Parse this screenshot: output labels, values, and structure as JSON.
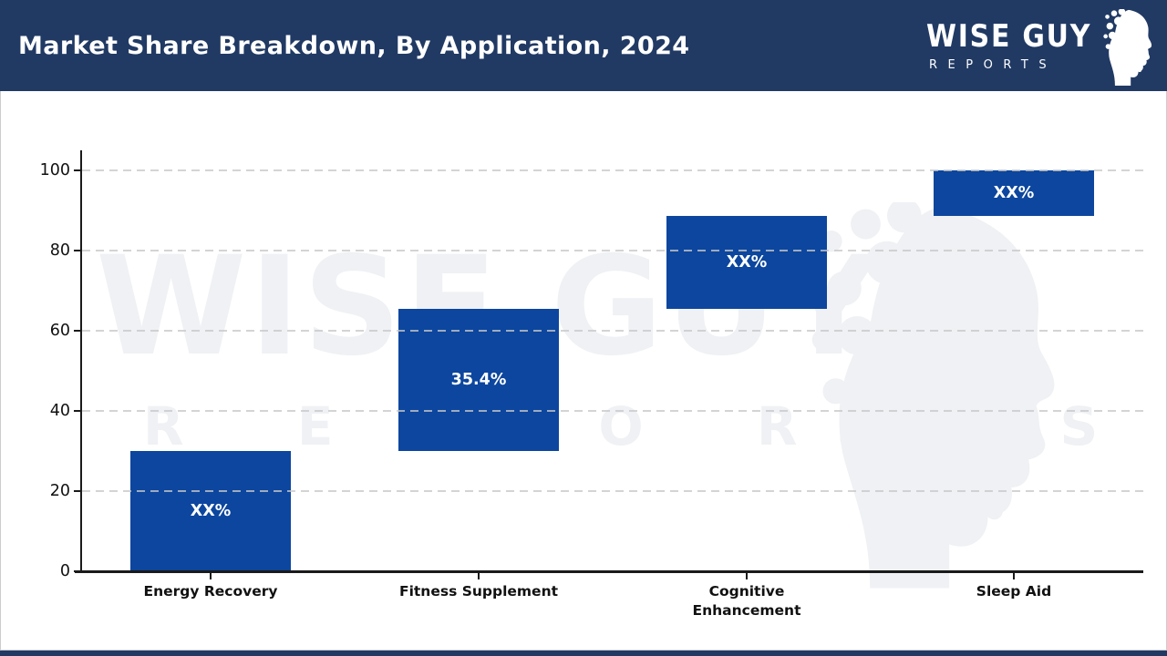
{
  "header": {
    "title": "Market Share Breakdown, By Application, 2024",
    "logo": {
      "line1": "WISE GUY",
      "line2": "REPORTS"
    }
  },
  "watermark": {
    "line1": "WISE GUY",
    "line2": "R E P O R T S"
  },
  "colors": {
    "header_navy": "#213a64",
    "bar_blue": "#0c469e",
    "grid_gray": "#c8c8c8",
    "axis_dark": "#1a1a1a",
    "watermark_gray": "#eff1f4",
    "bar_label_white": "#ffffff"
  },
  "chart_data": {
    "type": "bar",
    "subtype": "floating-waterfall",
    "title": "Market Share Breakdown, By Application, 2024",
    "categories": [
      "Energy Recovery",
      "Fitness Supplement",
      "Cognitive\nEnhancement",
      "Sleep Aid"
    ],
    "segments": [
      {
        "category": "Energy Recovery",
        "start": 0,
        "end": 30,
        "value_label": "XX%"
      },
      {
        "category": "Fitness Supplement",
        "start": 30,
        "end": 65.4,
        "value_label": "35.4%"
      },
      {
        "category": "Cognitive\nEnhancement",
        "start": 65.4,
        "end": 88.7,
        "value_label": "XX%"
      },
      {
        "category": "Sleep Aid",
        "start": 88.7,
        "end": 100,
        "value_label": "XX%"
      }
    ],
    "ylim": [
      0,
      100
    ],
    "yticks": [
      0,
      20,
      40,
      60,
      80,
      100
    ],
    "xlabel": "",
    "ylabel": "",
    "grid": "horizontal-dashed",
    "legend": "none"
  }
}
